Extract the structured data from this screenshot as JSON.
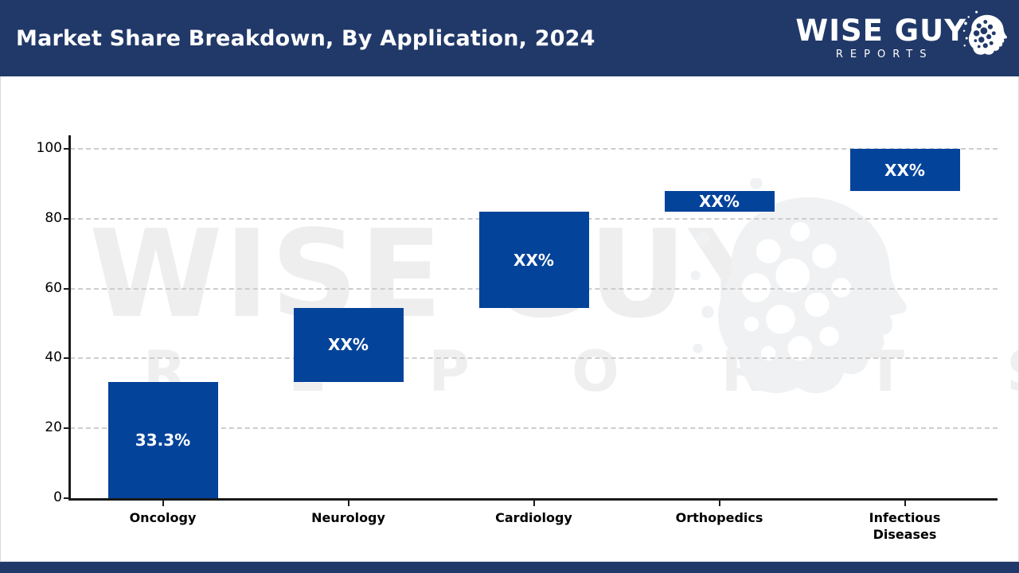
{
  "header": {
    "title": "Market Share Breakdown, By Application, 2024",
    "logo": {
      "name": "WISE GUY",
      "sub": "REPORTS"
    }
  },
  "watermark": {
    "line1": "WISE GUY",
    "line2": "R E P O R T S"
  },
  "chart_data": {
    "type": "bar",
    "variant": "waterfall",
    "title": "Market Share Breakdown, By Application, 2024",
    "categories": [
      "Oncology",
      "Neurology",
      "Cardiology",
      "Orthopedics",
      "Infectious Diseases"
    ],
    "segments": [
      {
        "category": "Oncology",
        "start": 0,
        "end": 33.3,
        "value": 33.3,
        "label": "33.3%"
      },
      {
        "category": "Neurology",
        "start": 33.3,
        "end": 54.5,
        "value": 21.2,
        "label": "XX%"
      },
      {
        "category": "Cardiology",
        "start": 54.5,
        "end": 81.9,
        "value": 27.4,
        "label": "XX%"
      },
      {
        "category": "Orthopedics",
        "start": 81.9,
        "end": 87.9,
        "value": 6.0,
        "label": "XX%"
      },
      {
        "category": "Infectious Diseases",
        "start": 87.9,
        "end": 100,
        "value": 12.1,
        "label": "XX%"
      }
    ],
    "yticks": [
      0,
      20,
      40,
      60,
      80,
      100
    ],
    "ylim": [
      0,
      104
    ],
    "xlabel": "",
    "ylabel": "",
    "grid": "horizontal-dashed",
    "legend": "none",
    "bar_color": "#04439a",
    "bar_label_color": "#ffffff"
  },
  "colors": {
    "header_bg": "#213968",
    "footer_bg": "#213968",
    "bar": "#04439a",
    "gridline": "#cdcdcd",
    "axis": "#1a1a1a",
    "watermark": "#eeeeee"
  }
}
